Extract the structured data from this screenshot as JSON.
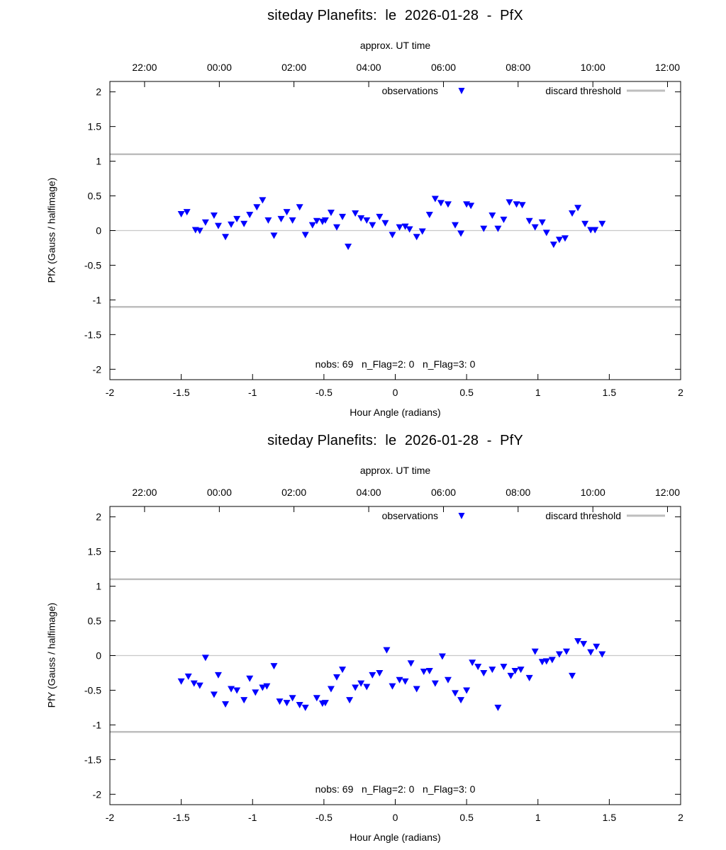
{
  "colors": {
    "background": "#ffffff",
    "text": "#000000",
    "border": "#000000",
    "marker": "#0000ff",
    "threshold_line": "#bebebe",
    "zero_line": "#c8c8c8"
  },
  "chart_data": [
    {
      "type": "scatter",
      "title": "siteday Planefits:  le  2026-01-28  -  PfX",
      "top_axis_label": "approx. UT time",
      "xlabel": "Hour Angle (radians)",
      "ylabel": "PfX (Gauss / halfimage)",
      "annotation": "nobs: 69   n_Flag=2: 0   n_Flag=3: 0",
      "legend": {
        "observations_label": "observations",
        "threshold_label": "discard threshold"
      },
      "legend_position": "top-right-inside",
      "grid": "zero-axis-only",
      "xlim": [
        -2,
        2
      ],
      "ylim": [
        -2.15,
        2.15
      ],
      "x_ticks": [
        {
          "v": -2,
          "label": "-2"
        },
        {
          "v": -1.5,
          "label": "-1.5"
        },
        {
          "v": -1,
          "label": "-1"
        },
        {
          "v": -0.5,
          "label": "-0.5"
        },
        {
          "v": 0,
          "label": "0"
        },
        {
          "v": 0.5,
          "label": "0.5"
        },
        {
          "v": 1,
          "label": "1"
        },
        {
          "v": 1.5,
          "label": "1.5"
        },
        {
          "v": 2,
          "label": "2"
        }
      ],
      "y_ticks": [
        {
          "v": 2,
          "label": "2"
        },
        {
          "v": 1.5,
          "label": "1.5"
        },
        {
          "v": 1,
          "label": "1"
        },
        {
          "v": 0.5,
          "label": "0.5"
        },
        {
          "v": 0,
          "label": "0"
        },
        {
          "v": -0.5,
          "label": "-0.5"
        },
        {
          "v": -1,
          "label": "-1"
        },
        {
          "v": -1.5,
          "label": "-1.5"
        },
        {
          "v": -2,
          "label": "-2"
        }
      ],
      "top_ticks": [
        {
          "v": -1.757,
          "label": "22:00"
        },
        {
          "v": -1.233,
          "label": "00:00"
        },
        {
          "v": -0.71,
          "label": "02:00"
        },
        {
          "v": -0.186,
          "label": "04:00"
        },
        {
          "v": 0.338,
          "label": "06:00"
        },
        {
          "v": 0.861,
          "label": "08:00"
        },
        {
          "v": 1.385,
          "label": "10:00"
        },
        {
          "v": 1.908,
          "label": "12:00"
        }
      ],
      "thresholds": [
        1.1,
        -1.1
      ],
      "points": [
        [
          -1.5,
          0.24
        ],
        [
          -1.46,
          0.27
        ],
        [
          -1.4,
          0.01
        ],
        [
          -1.37,
          0.0
        ],
        [
          -1.33,
          0.12
        ],
        [
          -1.27,
          0.22
        ],
        [
          -1.24,
          0.07
        ],
        [
          -1.19,
          -0.09
        ],
        [
          -1.15,
          0.09
        ],
        [
          -1.11,
          0.17
        ],
        [
          -1.06,
          0.1
        ],
        [
          -1.02,
          0.23
        ],
        [
          -0.97,
          0.34
        ],
        [
          -0.93,
          0.44
        ],
        [
          -0.89,
          0.15
        ],
        [
          -0.85,
          -0.07
        ],
        [
          -0.8,
          0.17
        ],
        [
          -0.76,
          0.27
        ],
        [
          -0.72,
          0.15
        ],
        [
          -0.67,
          0.34
        ],
        [
          -0.63,
          -0.06
        ],
        [
          -0.58,
          0.08
        ],
        [
          -0.55,
          0.14
        ],
        [
          -0.51,
          0.13
        ],
        [
          -0.49,
          0.15
        ],
        [
          -0.45,
          0.26
        ],
        [
          -0.41,
          0.05
        ],
        [
          -0.37,
          0.2
        ],
        [
          -0.33,
          -0.23
        ],
        [
          -0.28,
          0.25
        ],
        [
          -0.24,
          0.18
        ],
        [
          -0.2,
          0.15
        ],
        [
          -0.16,
          0.08
        ],
        [
          -0.11,
          0.2
        ],
        [
          -0.07,
          0.11
        ],
        [
          -0.02,
          -0.06
        ],
        [
          0.03,
          0.05
        ],
        [
          0.07,
          0.06
        ],
        [
          0.1,
          0.02
        ],
        [
          0.15,
          -0.09
        ],
        [
          0.19,
          -0.01
        ],
        [
          0.24,
          0.23
        ],
        [
          0.28,
          0.46
        ],
        [
          0.32,
          0.4
        ],
        [
          0.37,
          0.38
        ],
        [
          0.42,
          0.08
        ],
        [
          0.46,
          -0.04
        ],
        [
          0.5,
          0.38
        ],
        [
          0.53,
          0.36
        ],
        [
          0.62,
          0.03
        ],
        [
          0.68,
          0.22
        ],
        [
          0.72,
          0.03
        ],
        [
          0.76,
          0.16
        ],
        [
          0.8,
          0.41
        ],
        [
          0.85,
          0.38
        ],
        [
          0.89,
          0.37
        ],
        [
          0.94,
          0.14
        ],
        [
          0.98,
          0.05
        ],
        [
          1.03,
          0.12
        ],
        [
          1.06,
          -0.03
        ],
        [
          1.11,
          -0.2
        ],
        [
          1.15,
          -0.13
        ],
        [
          1.19,
          -0.11
        ],
        [
          1.24,
          0.25
        ],
        [
          1.28,
          0.33
        ],
        [
          1.33,
          0.1
        ],
        [
          1.37,
          0.01
        ],
        [
          1.4,
          0.01
        ],
        [
          1.45,
          0.1
        ]
      ]
    },
    {
      "type": "scatter",
      "title": "siteday Planefits:  le  2026-01-28  -  PfY",
      "top_axis_label": "approx. UT time",
      "xlabel": "Hour Angle (radians)",
      "ylabel": "PfY (Gauss / halfimage)",
      "annotation": "nobs: 69   n_Flag=2: 0   n_Flag=3: 0",
      "legend": {
        "observations_label": "observations",
        "threshold_label": "discard threshold"
      },
      "legend_position": "top-right-inside",
      "grid": "zero-axis-only",
      "xlim": [
        -2,
        2
      ],
      "ylim": [
        -2.15,
        2.15
      ],
      "x_ticks": [
        {
          "v": -2,
          "label": "-2"
        },
        {
          "v": -1.5,
          "label": "-1.5"
        },
        {
          "v": -1,
          "label": "-1"
        },
        {
          "v": -0.5,
          "label": "-0.5"
        },
        {
          "v": 0,
          "label": "0"
        },
        {
          "v": 0.5,
          "label": "0.5"
        },
        {
          "v": 1,
          "label": "1"
        },
        {
          "v": 1.5,
          "label": "1.5"
        },
        {
          "v": 2,
          "label": "2"
        }
      ],
      "y_ticks": [
        {
          "v": 2,
          "label": "2"
        },
        {
          "v": 1.5,
          "label": "1.5"
        },
        {
          "v": 1,
          "label": "1"
        },
        {
          "v": 0.5,
          "label": "0.5"
        },
        {
          "v": 0,
          "label": "0"
        },
        {
          "v": -0.5,
          "label": "-0.5"
        },
        {
          "v": -1,
          "label": "-1"
        },
        {
          "v": -1.5,
          "label": "-1.5"
        },
        {
          "v": -2,
          "label": "-2"
        }
      ],
      "top_ticks": [
        {
          "v": -1.757,
          "label": "22:00"
        },
        {
          "v": -1.233,
          "label": "00:00"
        },
        {
          "v": -0.71,
          "label": "02:00"
        },
        {
          "v": -0.186,
          "label": "04:00"
        },
        {
          "v": 0.338,
          "label": "06:00"
        },
        {
          "v": 0.861,
          "label": "08:00"
        },
        {
          "v": 1.385,
          "label": "10:00"
        },
        {
          "v": 1.908,
          "label": "12:00"
        }
      ],
      "thresholds": [
        1.1,
        -1.1
      ],
      "points": [
        [
          -1.5,
          -0.37
        ],
        [
          -1.45,
          -0.3
        ],
        [
          -1.41,
          -0.4
        ],
        [
          -1.37,
          -0.43
        ],
        [
          -1.33,
          -0.03
        ],
        [
          -1.27,
          -0.56
        ],
        [
          -1.24,
          -0.28
        ],
        [
          -1.19,
          -0.7
        ],
        [
          -1.15,
          -0.48
        ],
        [
          -1.11,
          -0.5
        ],
        [
          -1.06,
          -0.64
        ],
        [
          -1.02,
          -0.33
        ],
        [
          -0.98,
          -0.53
        ],
        [
          -0.93,
          -0.46
        ],
        [
          -0.9,
          -0.44
        ],
        [
          -0.85,
          -0.15
        ],
        [
          -0.81,
          -0.66
        ],
        [
          -0.76,
          -0.68
        ],
        [
          -0.72,
          -0.61
        ],
        [
          -0.67,
          -0.71
        ],
        [
          -0.63,
          -0.75
        ],
        [
          -0.55,
          -0.61
        ],
        [
          -0.51,
          -0.69
        ],
        [
          -0.49,
          -0.68
        ],
        [
          -0.45,
          -0.48
        ],
        [
          -0.41,
          -0.31
        ],
        [
          -0.37,
          -0.2
        ],
        [
          -0.32,
          -0.64
        ],
        [
          -0.28,
          -0.46
        ],
        [
          -0.24,
          -0.4
        ],
        [
          -0.2,
          -0.45
        ],
        [
          -0.16,
          -0.28
        ],
        [
          -0.11,
          -0.25
        ],
        [
          -0.06,
          0.08
        ],
        [
          -0.02,
          -0.44
        ],
        [
          0.03,
          -0.35
        ],
        [
          0.07,
          -0.37
        ],
        [
          0.11,
          -0.11
        ],
        [
          0.15,
          -0.48
        ],
        [
          0.2,
          -0.23
        ],
        [
          0.24,
          -0.22
        ],
        [
          0.28,
          -0.4
        ],
        [
          0.33,
          -0.01
        ],
        [
          0.37,
          -0.35
        ],
        [
          0.42,
          -0.54
        ],
        [
          0.46,
          -0.64
        ],
        [
          0.5,
          -0.5
        ],
        [
          0.54,
          -0.1
        ],
        [
          0.58,
          -0.16
        ],
        [
          0.62,
          -0.25
        ],
        [
          0.68,
          -0.2
        ],
        [
          0.72,
          -0.75
        ],
        [
          0.76,
          -0.16
        ],
        [
          0.81,
          -0.29
        ],
        [
          0.84,
          -0.22
        ],
        [
          0.88,
          -0.2
        ],
        [
          0.94,
          -0.32
        ],
        [
          0.98,
          0.06
        ],
        [
          1.03,
          -0.09
        ],
        [
          1.06,
          -0.08
        ],
        [
          1.1,
          -0.06
        ],
        [
          1.15,
          0.02
        ],
        [
          1.2,
          0.06
        ],
        [
          1.24,
          -0.29
        ],
        [
          1.28,
          0.21
        ],
        [
          1.32,
          0.17
        ],
        [
          1.37,
          0.05
        ],
        [
          1.41,
          0.13
        ],
        [
          1.45,
          0.02
        ]
      ]
    }
  ]
}
